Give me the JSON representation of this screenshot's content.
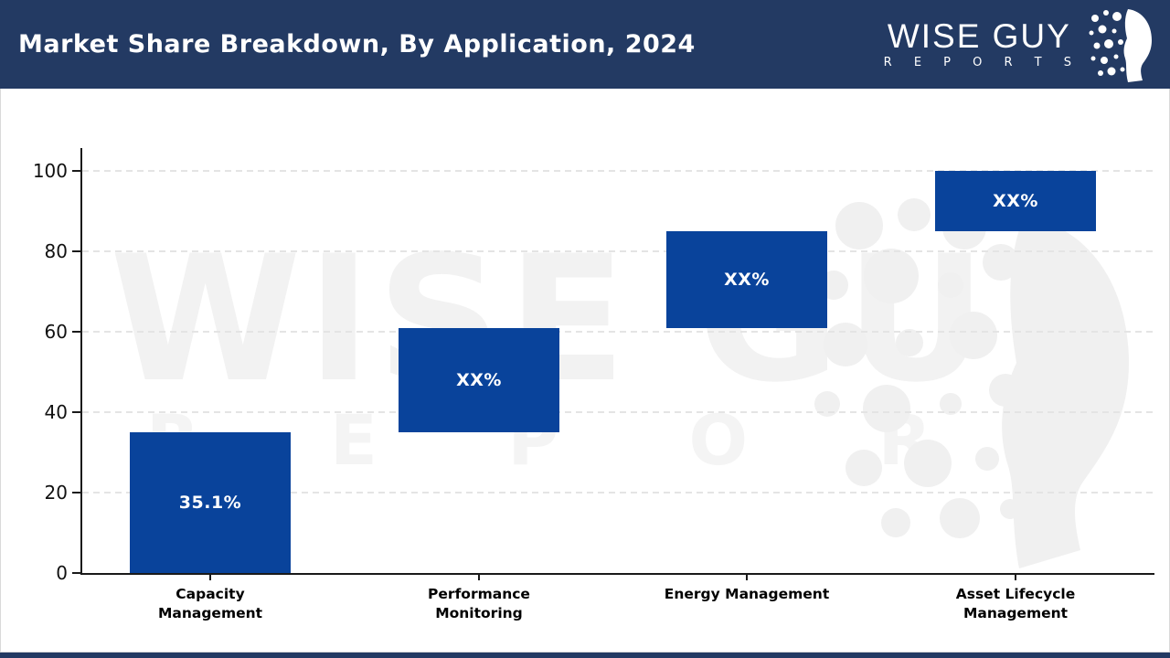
{
  "header": {
    "title": "Market Share Breakdown, By Application, 2024",
    "logo": {
      "line1": "WISE GUY",
      "line2": "R E P O R T S"
    }
  },
  "watermark": {
    "line1": "WISE GU",
    "line2": "R E P O R T S"
  },
  "colors": {
    "header_bg": "#233a63",
    "bar": "#09439b",
    "axis": "#1a1a1a",
    "grid": "#e4e4e4",
    "footer_bg": "#233a63"
  },
  "chart_data": {
    "type": "bar",
    "subtype": "waterfall",
    "title": "Market Share Breakdown, By Application, 2024",
    "xlabel": "",
    "ylabel": "",
    "ylim": [
      0,
      100
    ],
    "yticks": [
      0,
      20,
      40,
      60,
      80,
      100
    ],
    "grid": true,
    "legend": "none",
    "categories": [
      {
        "label": "Capacity Management",
        "lines": [
          "Capacity",
          "Management"
        ]
      },
      {
        "label": "Performance Monitoring",
        "lines": [
          "Performance",
          "Monitoring"
        ]
      },
      {
        "label": "Energy Management",
        "lines": [
          "Energy Management"
        ]
      },
      {
        "label": "Asset Lifecycle Management",
        "lines": [
          "Asset Lifecycle",
          "Management"
        ]
      }
    ],
    "segments": [
      {
        "category": "Capacity Management",
        "start": 0,
        "end": 35.1,
        "label": "35.1%"
      },
      {
        "category": "Performance Monitoring",
        "start": 35.1,
        "end": 61,
        "label": "XX%"
      },
      {
        "category": "Energy Management",
        "start": 61,
        "end": 85,
        "label": "XX%"
      },
      {
        "category": "Asset Lifecycle Management",
        "start": 85,
        "end": 100,
        "label": "XX%"
      }
    ]
  }
}
